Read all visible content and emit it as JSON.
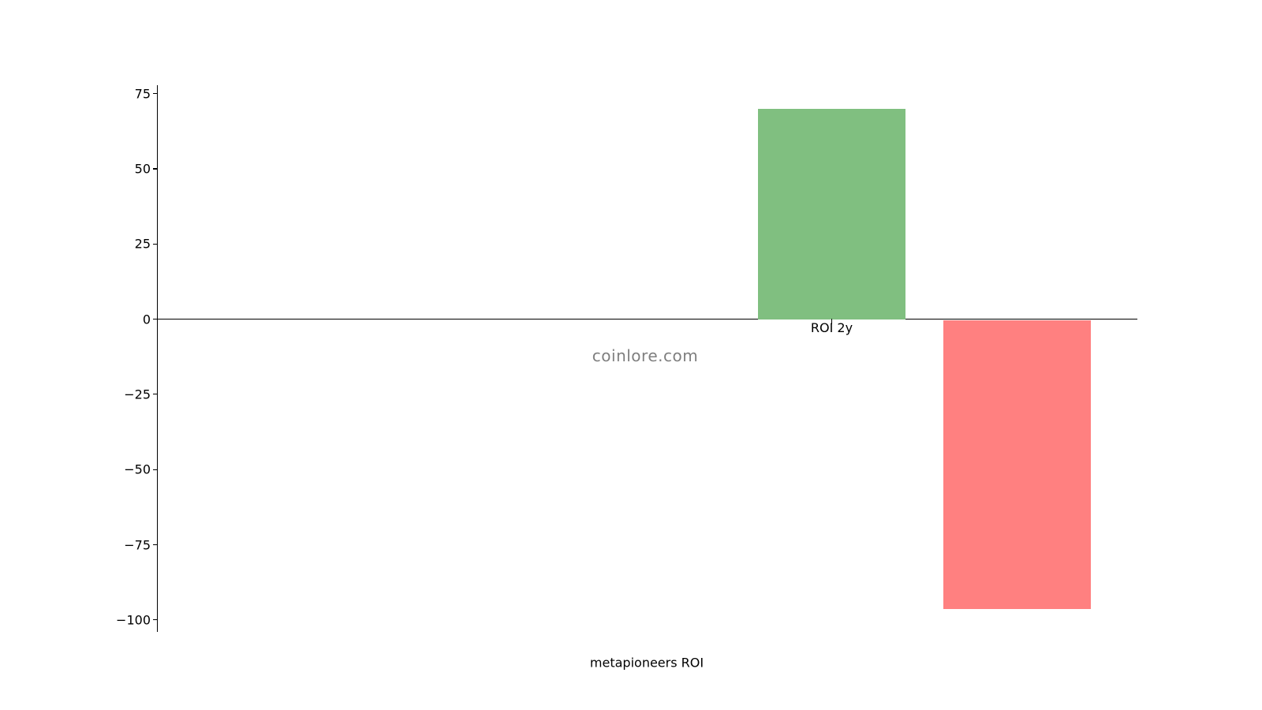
{
  "chart_data": {
    "type": "bar",
    "categories": [
      "ROI 2y",
      ""
    ],
    "values": [
      70,
      -96
    ],
    "bar_colors": [
      "#80bf80",
      "#ff8080"
    ],
    "title": "",
    "xlabel": "metapioneers ROI",
    "ylabel": "",
    "ylim": [
      -104.3,
      78.3
    ],
    "yticks": [
      75,
      50,
      25,
      0,
      -25,
      -50,
      -75,
      -100
    ],
    "grid": false,
    "legend_position": "none",
    "background": "#ffffff"
  },
  "watermark": {
    "text": "coinlore.com",
    "color": "#7f7f7f"
  },
  "footer": {
    "xlabel": "metapioneers ROI"
  }
}
